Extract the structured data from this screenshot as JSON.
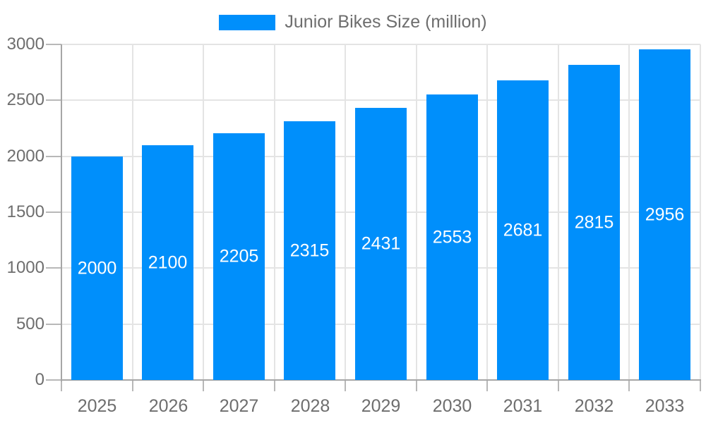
{
  "chart_data": {
    "type": "bar",
    "title": "Junior Bikes Size (million)",
    "legend": {
      "label": "Junior Bikes Size (million)",
      "position": "top-center",
      "marker": "rect"
    },
    "categories": [
      "2025",
      "2026",
      "2027",
      "2028",
      "2029",
      "2030",
      "2031",
      "2032",
      "2033"
    ],
    "series": [
      {
        "name": "Junior Bikes Size (million)",
        "values": [
          2000,
          2100,
          2205,
          2315,
          2431,
          2553,
          2681,
          2815,
          2956
        ]
      }
    ],
    "data_labels": [
      "2000",
      "2100",
      "2205",
      "2315",
      "2431",
      "2553",
      "2681",
      "2815",
      "2956"
    ],
    "xlabel": "",
    "ylabel": "",
    "ylim": [
      0,
      3000
    ],
    "yticks": [
      0,
      500,
      1000,
      1500,
      2000,
      2500,
      3000
    ],
    "grid": true,
    "colors": {
      "bar": "#008FFB",
      "data_label": "#FFFFFF",
      "axis_text": "#6E6E6E",
      "gridline": "#E4E4E4",
      "axis_line": "#A6A6A6",
      "background": "#FFFFFF"
    }
  }
}
